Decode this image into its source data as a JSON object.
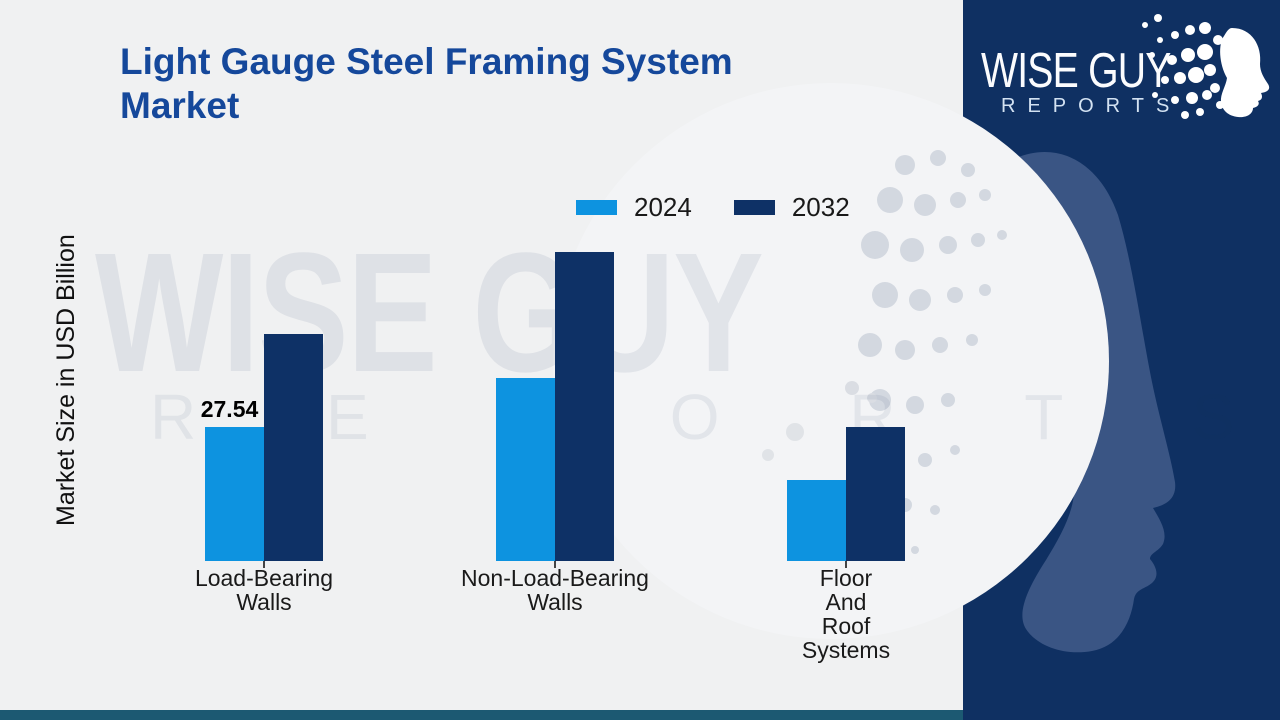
{
  "header": {
    "title": "Light Gauge Steel Framing System\nMarket",
    "title_color": "#15489b"
  },
  "brand": {
    "name": "WISE GUY",
    "sub": "REPORTS",
    "panel_color": "#0f3062"
  },
  "watermark": {
    "line1": "WISE GUY",
    "line2": "R E P O R T S"
  },
  "chart_data": {
    "type": "bar",
    "title": "Light Gauge Steel Framing System Market",
    "ylabel": "Market Size in USD Billion",
    "categories": [
      "Load-Bearing\nWalls",
      "Non-Load-Bearing\nWalls",
      "Floor\nAnd\nRoof\nSystems"
    ],
    "series": [
      {
        "name": "2024",
        "color": "#0d93e0",
        "values": [
          27.54,
          37.7,
          16.6
        ]
      },
      {
        "name": "2032",
        "color": "#0e3166",
        "values": [
          46.7,
          63.6,
          27.5
        ]
      }
    ],
    "data_labels": [
      {
        "series": "2024",
        "category_index": 0,
        "text": "27.54"
      }
    ],
    "ylim": [
      0,
      70
    ],
    "grid": false,
    "legend_position": "top-center",
    "note": "only the 27.54 value is labeled on the chart; other values estimated from bar heights"
  },
  "colors": {
    "background": "#f0f1f2",
    "footer_bar": "#1c5972",
    "right_panel": "#0f3062",
    "face_silhouette": "#3a5584",
    "light_circle": "#f3f4f6"
  }
}
